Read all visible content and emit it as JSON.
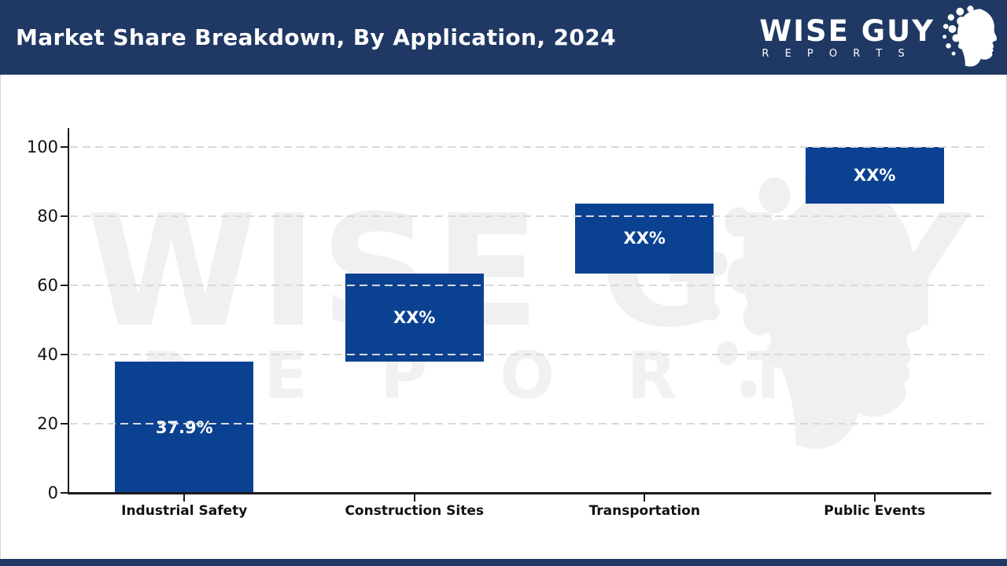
{
  "header": {
    "title": "Market Share Breakdown, By Application, 2024",
    "logo": {
      "line1": "WISE GUY",
      "line2": "R E P O R T S"
    }
  },
  "watermark": {
    "line1": "WISE GUY",
    "line2": "REPORTS"
  },
  "colors": {
    "header_bg": "#1f3864",
    "footer_bg": "#1f3864",
    "bar_fill": "#0a4191",
    "bar_label_text": "#ffffff",
    "gridline": "#d9d9d9",
    "axis": "#1a1a1a",
    "tick_label": "#111111",
    "watermark": "#f0f0f2"
  },
  "chart_data": {
    "type": "bar",
    "subtype": "waterfall",
    "title": "Market Share Breakdown, By Application, 2024",
    "categories": [
      "Industrial Safety",
      "Construction Sites",
      "Transportation",
      "Public Events"
    ],
    "segments": [
      {
        "category": "Industrial Safety",
        "start": 0,
        "end": 37.9,
        "label": "37.9%"
      },
      {
        "category": "Construction Sites",
        "start": 37.9,
        "end": 63.5,
        "label": "XX%"
      },
      {
        "category": "Transportation",
        "start": 63.5,
        "end": 83.6,
        "label": "XX%"
      },
      {
        "category": "Public Events",
        "start": 83.6,
        "end": 100,
        "label": "XX%"
      }
    ],
    "xlabel": "",
    "ylabel": "",
    "yticks": [
      0,
      20,
      40,
      60,
      80,
      100
    ],
    "ylim": [
      0,
      104
    ],
    "grid": "horizontal-dashed",
    "legend": "none"
  }
}
